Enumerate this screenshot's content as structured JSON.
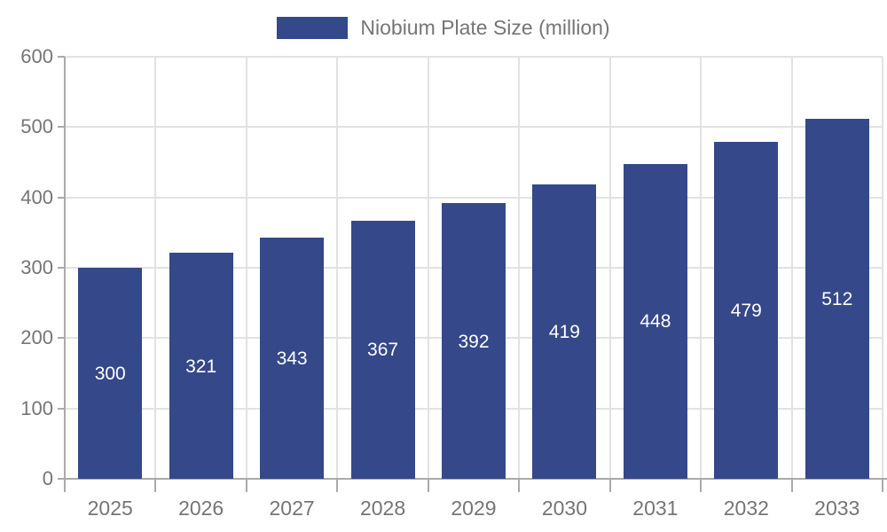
{
  "chart_data": {
    "type": "bar",
    "title": "Niobium Plate Size (million)",
    "legend": [
      {
        "label": "Niobium Plate Size (million)",
        "color": "#35488a"
      }
    ],
    "legend_position": "top",
    "categories": [
      "2025",
      "2026",
      "2027",
      "2028",
      "2029",
      "2030",
      "2031",
      "2032",
      "2033"
    ],
    "series": [
      {
        "name": "Niobium Plate Size (million)",
        "values": [
          300,
          321,
          343,
          367,
          392,
          419,
          448,
          479,
          512
        ]
      }
    ],
    "data_labels_visible": true,
    "xlabel": "",
    "ylabel": "",
    "ylim": [
      0,
      600
    ],
    "yticks": [
      0,
      100,
      200,
      300,
      400,
      500,
      600
    ],
    "grid": true
  },
  "colors": {
    "bar": "#35488a",
    "axis": "#aaaaaa",
    "grid": "#e2e2e2",
    "tick_text": "#757575",
    "bar_label_text": "#ffffff",
    "background": "#ffffff"
  }
}
